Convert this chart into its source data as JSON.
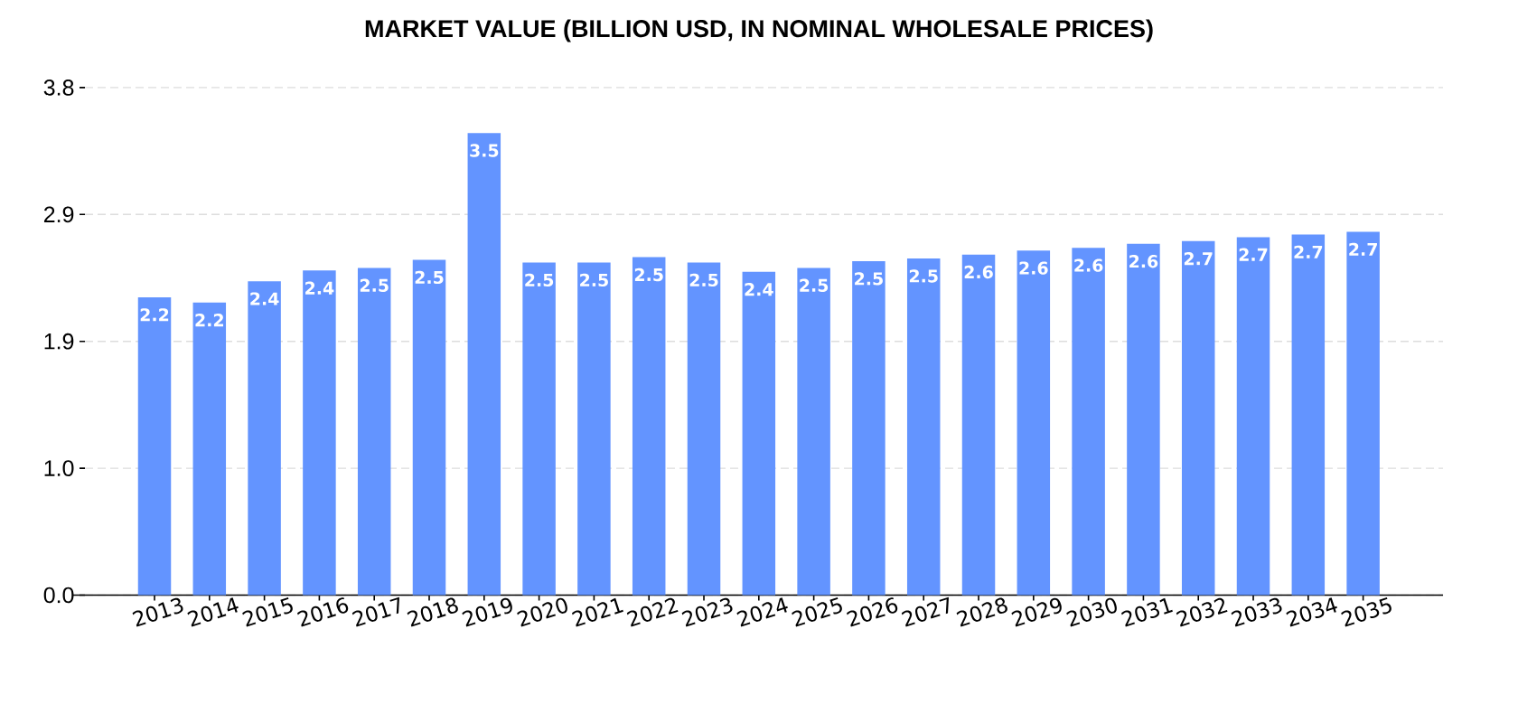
{
  "chart_data": {
    "type": "bar",
    "title": "MARKET VALUE (BILLION USD, IN NOMINAL WHOLESALE PRICES)",
    "categories": [
      "2013",
      "2014",
      "2015",
      "2016",
      "2017",
      "2018",
      "2019",
      "2020",
      "2021",
      "2022",
      "2023",
      "2024",
      "2025",
      "2026",
      "2027",
      "2028",
      "2029",
      "2030",
      "2031",
      "2032",
      "2033",
      "2034",
      "2035"
    ],
    "values": [
      2.23,
      2.19,
      2.35,
      2.43,
      2.45,
      2.51,
      3.46,
      2.49,
      2.49,
      2.53,
      2.49,
      2.42,
      2.45,
      2.5,
      2.52,
      2.55,
      2.58,
      2.6,
      2.63,
      2.65,
      2.68,
      2.7,
      2.72
    ],
    "value_labels": [
      "2.2",
      "2.2",
      "2.4",
      "2.4",
      "2.5",
      "2.5",
      "3.5",
      "2.5",
      "2.5",
      "2.5",
      "2.5",
      "2.4",
      "2.5",
      "2.5",
      "2.5",
      "2.6",
      "2.6",
      "2.6",
      "2.6",
      "2.7",
      "2.7",
      "2.7",
      "2.7"
    ],
    "color": "#6394ff",
    "ylim": [
      0,
      3.8
    ],
    "yticks": [
      {
        "value": 0,
        "label": "0.0"
      },
      {
        "value": 0.95,
        "label": "1.0"
      },
      1.9,
      {
        "value": 2.85,
        "label": "2.9"
      },
      3.8
    ],
    "grid": "y"
  }
}
